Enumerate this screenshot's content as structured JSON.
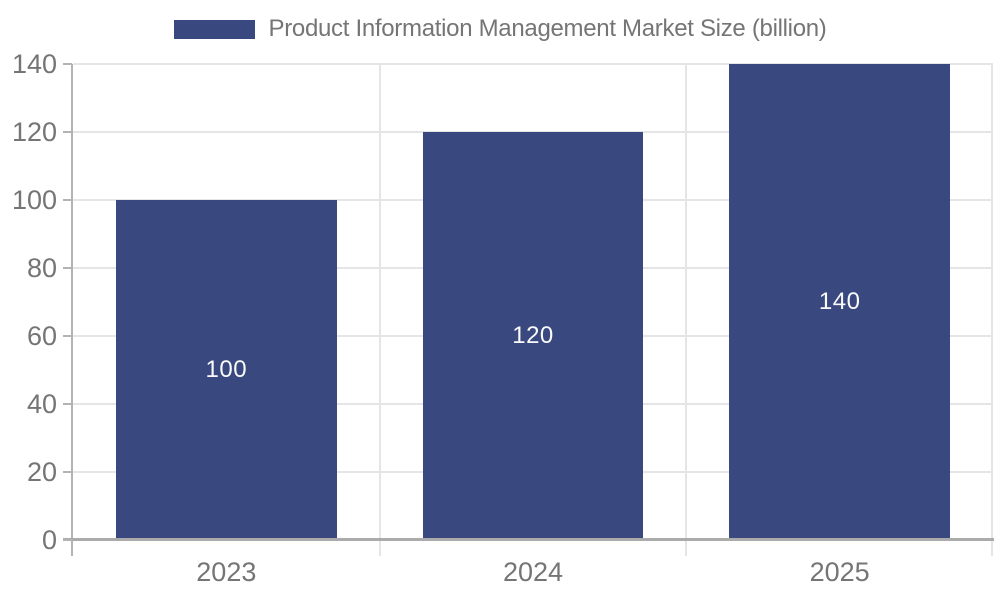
{
  "legend": {
    "label": "Product Information Management Market Size (billion)"
  },
  "chart_data": {
    "type": "bar",
    "title": "Product Information Management Market Size (billion)",
    "categories": [
      "2023",
      "2024",
      "2025"
    ],
    "values": [
      100,
      120,
      140
    ],
    "value_labels": [
      "100",
      "120",
      "140"
    ],
    "yticks": [
      0,
      20,
      40,
      60,
      80,
      100,
      120,
      140
    ],
    "ylim": [
      0,
      140
    ],
    "xlabel": "",
    "ylabel": "",
    "grid": true,
    "legend_position": "top-center",
    "bar_width_fraction": 0.72,
    "colors": {
      "bar": "#39497F",
      "value_label": "#FAFAFA",
      "axis_text": "#757575",
      "grid_line": "#E5E5E5",
      "axis_line": "#ABABAB",
      "background": "#FFFFFF"
    }
  }
}
